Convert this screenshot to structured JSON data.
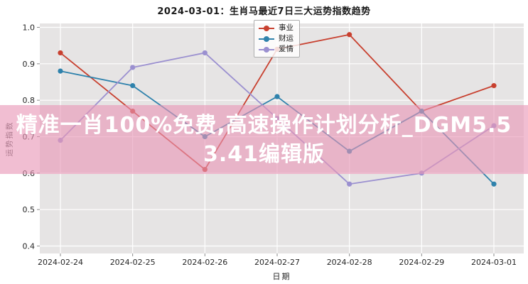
{
  "figure": {
    "title": "2024-03-01：生肖马最近7日三大运势指数趋势"
  },
  "overlay": {
    "line1": "精准一肖100%免费,高速操作计划分析_DGM5.5",
    "line2": "3.41编辑版"
  },
  "chart_data": {
    "type": "line",
    "title": "2024-03-01：生肖马最近7日三大运势指数趋势",
    "categories": [
      "2024-02-24",
      "2024-02-25",
      "2024-02-26",
      "2024-02-27",
      "2024-02-28",
      "2024-02-29",
      "2024-03-01"
    ],
    "series": [
      {
        "name": "事业",
        "color": "#c8402f",
        "values": [
          0.93,
          0.77,
          0.61,
          0.94,
          0.98,
          0.77,
          0.84
        ]
      },
      {
        "name": "财运",
        "color": "#2f82ac",
        "values": [
          0.88,
          0.84,
          0.7,
          0.81,
          0.66,
          0.77,
          0.57
        ]
      },
      {
        "name": "爱情",
        "color": "#9b90d0",
        "values": [
          0.69,
          0.89,
          0.93,
          0.75,
          0.57,
          0.6,
          0.73
        ]
      }
    ],
    "xlabel": "日期",
    "ylabel": "运势指数",
    "ylim": [
      0.4,
      1.0
    ],
    "yticks": [
      "1.0",
      "0.9",
      "0.8",
      "0.7",
      "0.6",
      "0.5",
      "0.4"
    ],
    "ytick_values": [
      1.0,
      0.9,
      0.8,
      0.7,
      0.6,
      0.5,
      0.4
    ],
    "grid": true,
    "legend_position": "upper center",
    "colors": {
      "plot_background": "#e6e4e4",
      "gridline": "#ffffff",
      "tick_text": "#262626",
      "tick_mark": "#8a8a8a",
      "overlay_band": "#e896b6",
      "overlay_text": "#ffffff"
    }
  }
}
